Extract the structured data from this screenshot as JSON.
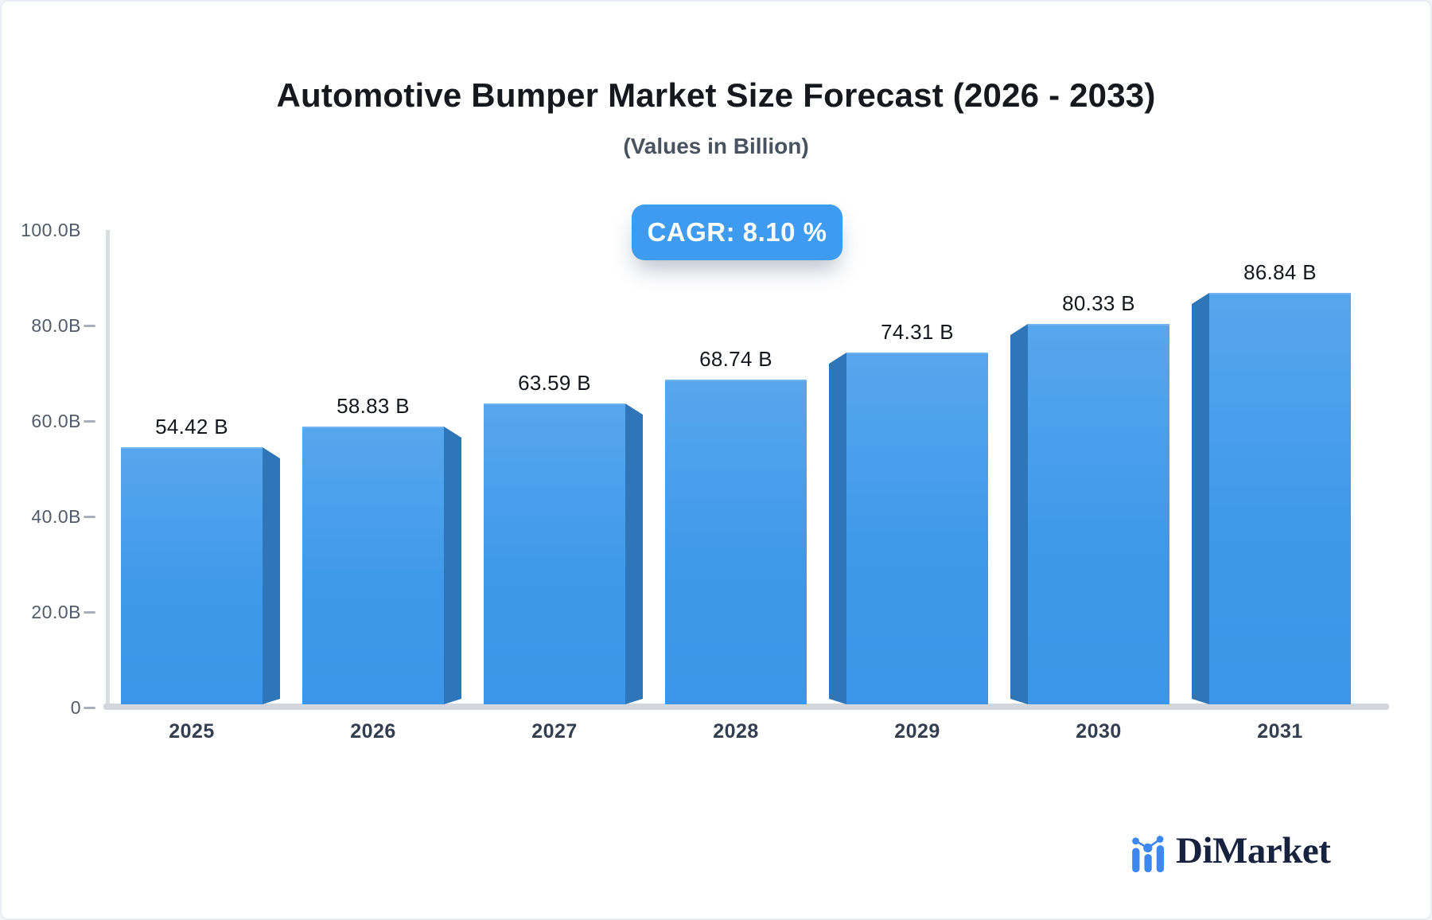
{
  "header": {
    "title": "Automotive Bumper Market Size Forecast (2026 - 2033)",
    "subtitle": "(Values in Billion)",
    "cagr_badge": "CAGR: 8.10 %"
  },
  "chart_data": {
    "type": "bar",
    "title": "Automotive Bumper Market Size Forecast (2026 - 2033)",
    "subtitle": "(Values in Billion)",
    "annotation": "CAGR: 8.10 %",
    "categories": [
      "2025",
      "2026",
      "2027",
      "2028",
      "2029",
      "2030",
      "2031"
    ],
    "values": [
      54.42,
      58.83,
      63.59,
      68.74,
      74.31,
      80.33,
      86.84
    ],
    "value_labels": [
      "54.42 B",
      "58.83 B",
      "63.59 B",
      "68.74 B",
      "74.31 B",
      "80.33 B",
      "86.84 B"
    ],
    "xlabel": "",
    "ylabel": "",
    "ylim": [
      0,
      100
    ],
    "y_tick_labels": [
      "0",
      "20.0B",
      "40.0B",
      "60.0B",
      "80.0B",
      "100.0B"
    ],
    "y_tick_values": [
      0,
      20,
      40,
      60,
      80,
      100
    ],
    "grid": false,
    "legend": false,
    "style": "3d-perspective-bars",
    "bar_color": "#3e99ea",
    "bar_side_color": "#2e76b8",
    "badge_color": "#3f9bf0"
  },
  "branding": {
    "logo_text": "DiMarket",
    "logo_icon": "bar-chart-trend-icon",
    "logo_icon_color": "#3d87f1",
    "logo_text_color": "#17223e"
  }
}
